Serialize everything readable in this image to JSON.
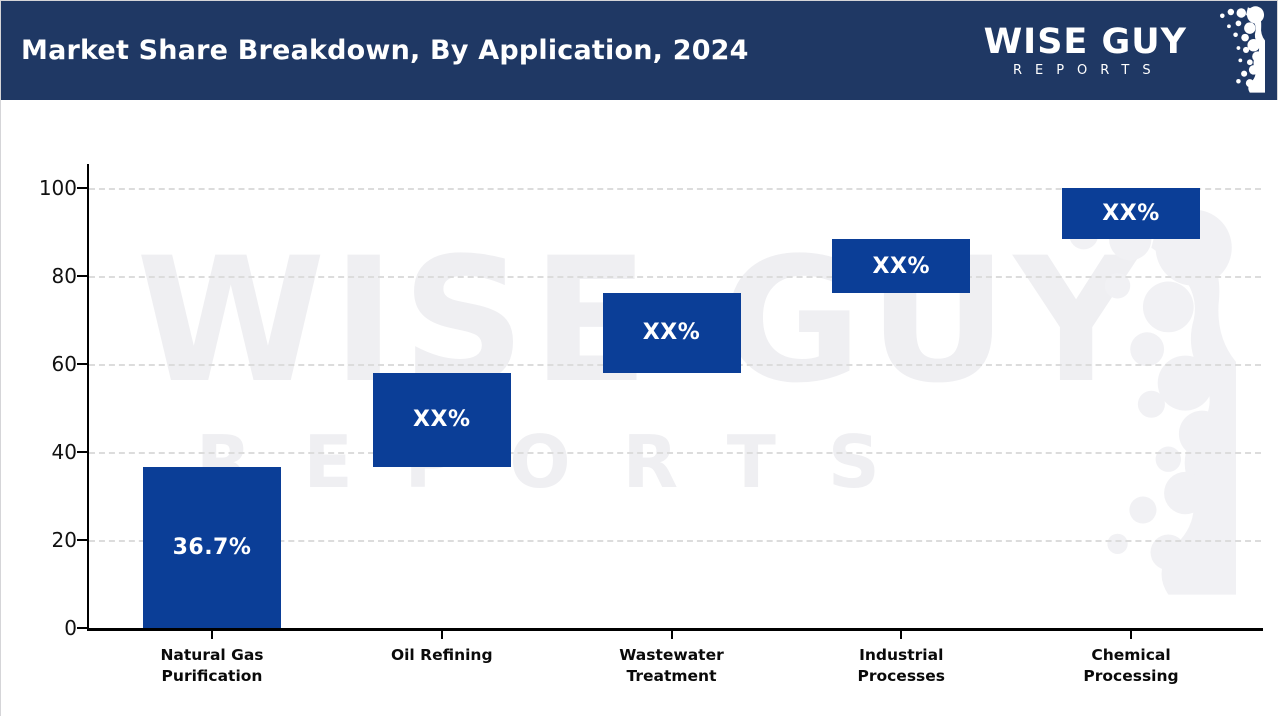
{
  "header": {
    "title": "Market Share Breakdown, By Application, 2024",
    "bg_color": "#1f3864",
    "logo": {
      "line1": "WISE GUY",
      "line2": "REPORTS"
    }
  },
  "watermark": {
    "line1": "WISE GUY",
    "line2": "REPORTS"
  },
  "chart_data": {
    "type": "bar",
    "subtype": "waterfall",
    "title": "Market Share Breakdown, By Application, 2024",
    "categories": [
      "Natural Gas\nPurification",
      "Oil Refining",
      "Wastewater\nTreatment",
      "Industrial\nProcesses",
      "Chemical\nProcessing"
    ],
    "series": [
      {
        "name": "Market Share",
        "segments": [
          {
            "category": "Natural Gas Purification",
            "start": 0,
            "end": 36.7,
            "label": "36.7%"
          },
          {
            "category": "Oil Refining",
            "start": 36.7,
            "end": 58.0,
            "label": "XX%"
          },
          {
            "category": "Wastewater Treatment",
            "start": 58.0,
            "end": 76.2,
            "label": "XX%"
          },
          {
            "category": "Industrial Processes",
            "start": 76.2,
            "end": 88.4,
            "label": "XX%"
          },
          {
            "category": "Chemical Processing",
            "start": 88.4,
            "end": 100,
            "label": "XX%"
          }
        ]
      }
    ],
    "xlabel": "",
    "ylabel": "",
    "yticks": [
      0,
      20,
      40,
      60,
      80,
      100
    ],
    "ylim": [
      0,
      105.5
    ],
    "grid": {
      "horizontal": true,
      "style": "dashed",
      "color": "#dcdcdc"
    },
    "legend": "none",
    "bar_color": "#0b3e97",
    "bar_label_color": "#ffffff"
  }
}
